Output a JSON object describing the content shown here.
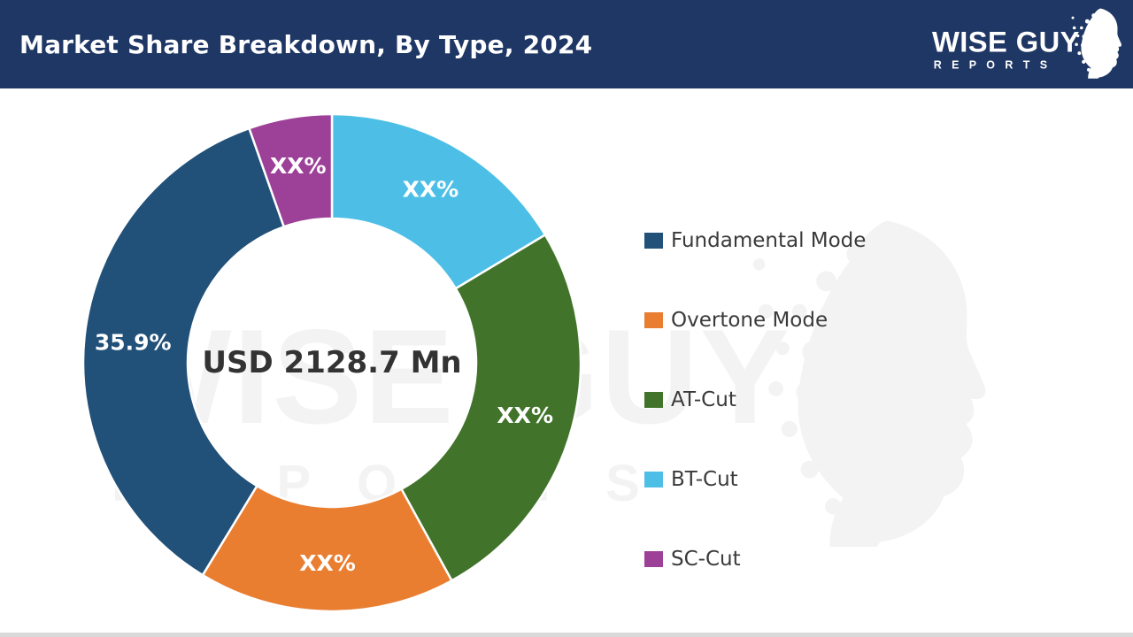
{
  "header": {
    "title": "Market Share Breakdown, By Type, 2024",
    "bg_color": "#1f3765",
    "logo": {
      "line1": "WISE GUY",
      "line2": "R E P O R T S"
    }
  },
  "watermark": {
    "line1": "WISE GUY",
    "line2": "R E P O R T S"
  },
  "chart_data": {
    "type": "pie",
    "subtype": "donut",
    "title": "Market Share Breakdown, By Type, 2024",
    "center_label": "USD 2128.7 Mn",
    "inner_radius_ratio": 0.58,
    "start_angle": "top",
    "direction": "clockwise",
    "legend_position": "right",
    "segments": [
      {
        "name": "Fundamental Mode",
        "label": "35.9%",
        "percent": 35.9,
        "color": "#215078"
      },
      {
        "name": "Overtone Mode",
        "label": "XX%",
        "percent": 16.7,
        "color": "#e97e31"
      },
      {
        "name": "AT-Cut",
        "label": "XX%",
        "percent": 25.6,
        "color": "#41742a"
      },
      {
        "name": "BT-Cut",
        "label": "XX%",
        "percent": 16.4,
        "color": "#4dbfe6"
      },
      {
        "name": "SC-Cut",
        "label": "XX%",
        "percent": 5.4,
        "color": "#9c4197"
      }
    ],
    "draw_order_clockwise_from_top": [
      "BT-Cut",
      "AT-Cut",
      "Overtone Mode",
      "Fundamental Mode",
      "SC-Cut"
    ]
  },
  "footer": {
    "bar_color": "#d9d9d9"
  }
}
